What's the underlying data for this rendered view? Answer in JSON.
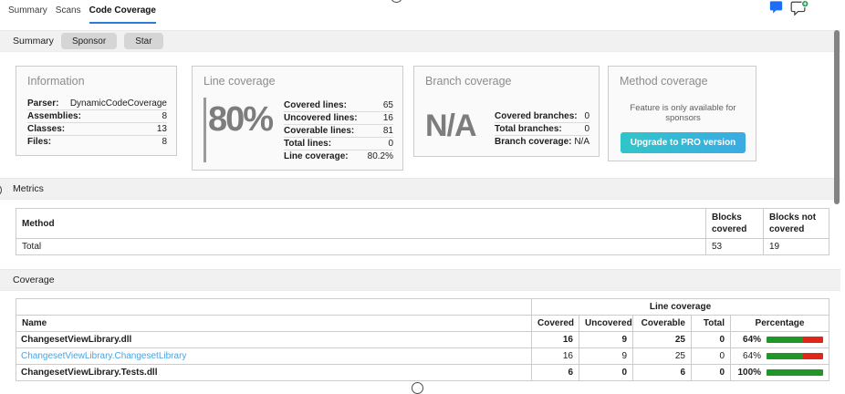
{
  "tabs": {
    "items": [
      {
        "label": "Summary",
        "active": false
      },
      {
        "label": "Scans",
        "active": false
      },
      {
        "label": "Code Coverage",
        "active": true
      }
    ]
  },
  "header_icons": {
    "chat_filled": "chat-bubble-filled-icon",
    "chat_add": "chat-bubble-add-icon"
  },
  "summary_section": {
    "title": "Summary",
    "sponsor_button": "Sponsor",
    "star_button": "Star",
    "cards": {
      "information": {
        "title": "Information",
        "rows": [
          {
            "label": "Parser:",
            "value": "DynamicCodeCoverage"
          },
          {
            "label": "Assemblies:",
            "value": "8"
          },
          {
            "label": "Classes:",
            "value": "13"
          },
          {
            "label": "Files:",
            "value": "8"
          }
        ]
      },
      "line_coverage": {
        "title": "Line coverage",
        "big_value": "80%",
        "rows": [
          {
            "label": "Covered lines:",
            "value": "65"
          },
          {
            "label": "Uncovered lines:",
            "value": "16"
          },
          {
            "label": "Coverable lines:",
            "value": "81"
          },
          {
            "label": "Total lines:",
            "value": "0"
          },
          {
            "label": "Line coverage:",
            "value": "80.2%"
          }
        ]
      },
      "branch_coverage": {
        "title": "Branch coverage",
        "big_value": "N/A",
        "rows": [
          {
            "label": "Covered branches:",
            "value": "0"
          },
          {
            "label": "Total branches:",
            "value": "0"
          },
          {
            "label": "Branch coverage:",
            "value": "N/A"
          }
        ]
      },
      "method_coverage": {
        "title": "Method coverage",
        "note": "Feature is only available for sponsors",
        "upgrade_button": "Upgrade to PRO version"
      }
    }
  },
  "metrics_section": {
    "title": "Metrics",
    "table": {
      "headers": {
        "method": "Method",
        "blocks_covered": "Blocks covered",
        "blocks_not_covered": "Blocks not covered"
      },
      "rows": [
        {
          "method": "Total",
          "blocks_covered": "53",
          "blocks_not_covered": "19"
        }
      ]
    }
  },
  "coverage_section": {
    "title": "Coverage",
    "table": {
      "group_header": "Line coverage",
      "columns": {
        "name": "Name",
        "covered": "Covered",
        "uncovered": "Uncovered",
        "coverable": "Coverable",
        "total": "Total",
        "percentage": "Percentage"
      },
      "rows": [
        {
          "name": "ChangesetViewLibrary.dll",
          "covered": "16",
          "uncovered": "9",
          "coverable": "25",
          "total": "0",
          "percentage": "64%",
          "percent": 64
        },
        {
          "name": "ChangesetViewLibrary.ChangesetLibrary",
          "covered": "16",
          "uncovered": "9",
          "coverable": "25",
          "total": "0",
          "percentage": "64%",
          "percent": 64
        },
        {
          "name": "ChangesetViewLibrary.Tests.dll",
          "covered": "6",
          "uncovered": "0",
          "coverable": "6",
          "total": "0",
          "percentage": "100%",
          "percent": 100
        }
      ]
    }
  },
  "colors": {
    "active_tab_underline": "#2b7bd9",
    "link_blue": "#4aa3e0",
    "bar_green": "#1f9626",
    "bar_red": "#e02519",
    "upgrade_gradient_start": "#30c5c9",
    "upgrade_gradient_end": "#3aabe3",
    "chat_icon_blue": "#1e6ef5",
    "badge_green": "#27a05c"
  }
}
